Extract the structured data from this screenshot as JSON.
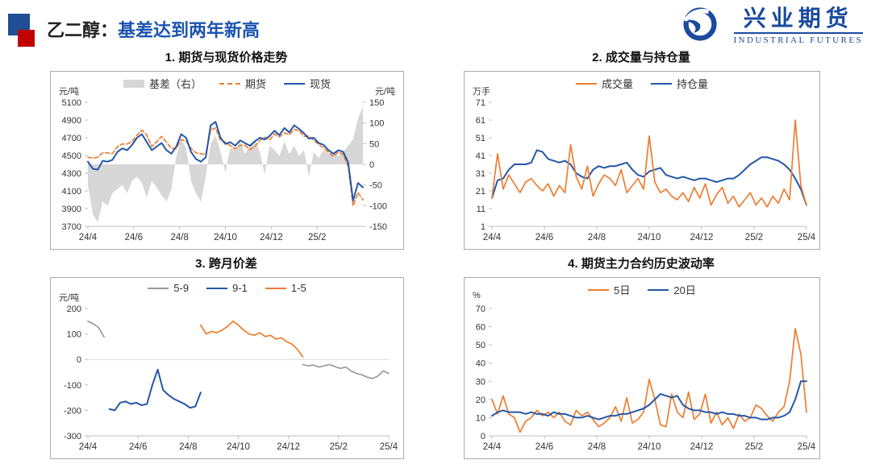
{
  "header": {
    "title_black": "乙二醇：",
    "title_blue": "基差达到两年新高"
  },
  "logo": {
    "name_cn": "兴业期货",
    "name_en": "INDUSTRIAL FUTURES",
    "color": "#1B4A9E"
  },
  "colors": {
    "orange": "#ED7D31",
    "blue": "#2457A7",
    "gray_area": "#D7D7D7",
    "gray_line": "#9B9B9B",
    "axis": "#BFBFBF",
    "text": "#333333"
  },
  "chart_data": [
    {
      "type": "line",
      "title": "1. 期货与现货价格走势",
      "unit_left": "元/吨",
      "unit_right": "元/吨",
      "x_ticks": [
        "24/4",
        "24/6",
        "24/8",
        "24/10",
        "24/12",
        "25/2"
      ],
      "x_tick_divisions": 6,
      "y_left": {
        "min": 3700,
        "max": 5100,
        "step": 200
      },
      "y_right": {
        "min": -150,
        "max": 150,
        "step": 50
      },
      "legend": [
        {
          "label": "基差（右）",
          "swatch": "area",
          "color": "gray_area"
        },
        {
          "label": "期货",
          "swatch": "dashed",
          "color": "orange"
        },
        {
          "label": "现货",
          "swatch": "line",
          "color": "blue"
        }
      ],
      "series": [
        {
          "name": "基差（右）",
          "kind": "area",
          "axis": "right",
          "color": "gray_area",
          "values": [
            -50,
            -120,
            -140,
            -90,
            -100,
            -70,
            -60,
            -50,
            -70,
            -40,
            -30,
            -45,
            -80,
            -40,
            -55,
            -75,
            -90,
            -60,
            20,
            60,
            40,
            -40,
            -70,
            -90,
            -30,
            50,
            70,
            30,
            -20,
            40,
            35,
            55,
            25,
            45,
            60,
            30,
            -25,
            45,
            35,
            20,
            55,
            25,
            45,
            20,
            35,
            -30,
            30,
            15,
            35,
            25,
            30,
            20,
            30,
            45,
            60,
            110,
            140
          ]
        },
        {
          "name": "期货",
          "kind": "line",
          "dash": "5 3",
          "axis": "left",
          "color": "orange",
          "width": 1.7,
          "values": [
            4480,
            4470,
            4480,
            4530,
            4530,
            4520,
            4600,
            4630,
            4630,
            4660,
            4730,
            4785,
            4730,
            4600,
            4655,
            4715,
            4650,
            4580,
            4580,
            4680,
            4660,
            4580,
            4530,
            4520,
            4510,
            4790,
            4810,
            4670,
            4650,
            4610,
            4575,
            4615,
            4615,
            4565,
            4600,
            4670,
            4705,
            4675,
            4745,
            4710,
            4755,
            4735,
            4795,
            4780,
            4715,
            4720,
            4670,
            4625,
            4585,
            4535,
            4490,
            4540,
            4510,
            4375,
            3930,
            4080,
            4000
          ]
        },
        {
          "name": "现货",
          "kind": "line",
          "axis": "left",
          "color": "blue",
          "width": 2,
          "values": [
            4430,
            4350,
            4340,
            4440,
            4430,
            4450,
            4540,
            4580,
            4560,
            4620,
            4700,
            4740,
            4650,
            4560,
            4600,
            4640,
            4560,
            4520,
            4600,
            4740,
            4700,
            4540,
            4460,
            4430,
            4480,
            4840,
            4880,
            4700,
            4630,
            4650,
            4610,
            4670,
            4640,
            4610,
            4660,
            4700,
            4680,
            4720,
            4780,
            4730,
            4810,
            4760,
            4840,
            4800,
            4750,
            4690,
            4700,
            4640,
            4620,
            4560,
            4520,
            4560,
            4540,
            4420,
            3990,
            4190,
            4140
          ]
        }
      ]
    },
    {
      "type": "line",
      "title": "2. 成交量与持仓量",
      "unit_left": "万手",
      "x_ticks": [
        "24/4",
        "24/6",
        "24/8",
        "24/10",
        "24/12",
        "25/2",
        "25/4"
      ],
      "x_tick_divisions": 6,
      "y_left": {
        "min": 1,
        "max": 71,
        "step": 10
      },
      "legend": [
        {
          "label": "成交量",
          "swatch": "line",
          "color": "orange"
        },
        {
          "label": "持仓量",
          "swatch": "line",
          "color": "blue"
        }
      ],
      "series": [
        {
          "name": "持仓量",
          "kind": "line",
          "axis": "left",
          "color": "blue",
          "width": 2,
          "values": [
            17,
            27,
            28,
            33,
            36,
            36,
            36,
            37,
            44,
            43,
            39,
            38,
            37,
            38,
            36,
            31,
            29,
            28,
            33,
            35,
            34,
            35,
            35,
            36,
            37,
            33,
            30,
            29,
            32,
            33,
            34,
            30,
            29,
            28,
            29,
            28,
            27,
            28,
            28,
            27,
            26,
            27,
            28,
            28,
            30,
            33,
            36,
            38,
            40,
            40,
            39,
            38,
            36,
            33,
            28,
            22,
            13
          ]
        },
        {
          "name": "成交量",
          "kind": "line",
          "axis": "left",
          "color": "orange",
          "width": 1.7,
          "values": [
            17,
            42,
            22,
            30,
            25,
            20,
            26,
            28,
            24,
            21,
            25,
            18,
            24,
            20,
            47,
            29,
            22,
            35,
            18,
            25,
            30,
            28,
            24,
            33,
            20,
            24,
            28,
            22,
            52,
            26,
            20,
            22,
            18,
            16,
            20,
            15,
            23,
            17,
            25,
            13,
            19,
            23,
            14,
            18,
            12,
            16,
            20,
            13,
            17,
            12,
            18,
            14,
            22,
            16,
            61,
            24,
            13
          ]
        }
      ]
    },
    {
      "type": "line",
      "title": "3. 跨月价差",
      "unit_left": "元/吨",
      "x_ticks": [
        "24/4",
        "24/6",
        "24/8",
        "24/10",
        "24/12",
        "25/2",
        "25/4"
      ],
      "x_tick_divisions": 6,
      "y_left": {
        "min": -300,
        "max": 200,
        "step": 100
      },
      "zero_line": true,
      "legend": [
        {
          "label": "5-9",
          "swatch": "line",
          "color": "gray_line"
        },
        {
          "label": "9-1",
          "swatch": "line",
          "color": "blue"
        },
        {
          "label": "1-5",
          "swatch": "line",
          "color": "orange"
        }
      ],
      "series": [
        {
          "name": "5-9",
          "kind": "line",
          "axis": "left",
          "color": "gray_line",
          "width": 1.7,
          "values": [
            150,
            140,
            125,
            88,
            null,
            null,
            null,
            null,
            null,
            null,
            null,
            null,
            null,
            null,
            null,
            null,
            null,
            null,
            null,
            null,
            null,
            null,
            null,
            null,
            null,
            null,
            null,
            null,
            null,
            null,
            null,
            null,
            null,
            null,
            null,
            null,
            null,
            null,
            null,
            null,
            -20,
            -25,
            -22,
            -30,
            -25,
            -20,
            -28,
            -35,
            -30,
            -45,
            -55,
            -60,
            -70,
            -75,
            -65,
            -45,
            -55
          ]
        },
        {
          "name": "9-1",
          "kind": "line",
          "axis": "left",
          "color": "blue",
          "width": 2,
          "values": [
            null,
            null,
            null,
            null,
            -195,
            -200,
            -170,
            -165,
            -175,
            -170,
            -180,
            -175,
            -100,
            -40,
            -120,
            -140,
            -155,
            -165,
            -175,
            -190,
            -185,
            -130,
            null,
            null,
            null,
            null,
            null,
            null,
            null,
            null,
            null,
            null,
            null,
            null,
            null,
            null,
            null,
            null,
            null,
            null,
            null,
            null,
            null,
            null,
            null,
            null,
            null,
            null,
            null,
            null,
            null,
            null,
            null,
            null,
            null,
            null,
            null
          ]
        },
        {
          "name": "1-5",
          "kind": "line",
          "axis": "left",
          "color": "orange",
          "width": 1.7,
          "values": [
            null,
            null,
            null,
            null,
            null,
            null,
            null,
            null,
            null,
            null,
            null,
            null,
            null,
            null,
            null,
            null,
            null,
            null,
            null,
            null,
            null,
            135,
            100,
            110,
            105,
            115,
            130,
            150,
            135,
            115,
            100,
            95,
            105,
            90,
            95,
            80,
            85,
            70,
            60,
            40,
            10,
            null,
            null,
            null,
            null,
            null,
            null,
            null,
            null,
            null,
            null,
            null,
            null,
            null,
            null,
            null,
            null
          ]
        }
      ]
    },
    {
      "type": "line",
      "title": "4. 期货主力合约历史波动率",
      "unit_left": "%",
      "x_ticks": [
        "24/4",
        "24/6",
        "24/8",
        "24/10",
        "24/12",
        "25/2",
        "25/4"
      ],
      "x_tick_divisions": 6,
      "y_left": {
        "min": 0,
        "max": 70,
        "step": 10
      },
      "legend": [
        {
          "label": "5日",
          "swatch": "line",
          "color": "orange"
        },
        {
          "label": "20日",
          "swatch": "line",
          "color": "blue"
        }
      ],
      "series": [
        {
          "name": "5日",
          "kind": "line",
          "axis": "left",
          "color": "orange",
          "width": 1.7,
          "values": [
            20,
            12,
            22,
            12,
            10,
            2,
            8,
            10,
            14,
            11,
            13,
            10,
            13,
            8,
            6,
            14,
            11,
            13,
            9,
            5,
            7,
            10,
            16,
            8,
            21,
            7,
            9,
            13,
            31,
            20,
            6,
            5,
            23,
            13,
            10,
            24,
            9,
            12,
            23,
            7,
            13,
            6,
            10,
            4,
            12,
            8,
            10,
            17,
            15,
            11,
            8,
            13,
            16,
            30,
            59,
            45,
            13
          ]
        },
        {
          "name": "20日",
          "kind": "line",
          "axis": "left",
          "color": "blue",
          "width": 2,
          "values": [
            11,
            13,
            14,
            13,
            13,
            13,
            12,
            13,
            12,
            12,
            11,
            13,
            12,
            12,
            11,
            10,
            10,
            11,
            10,
            9,
            10,
            11,
            11,
            12,
            12,
            13,
            14,
            15,
            17,
            20,
            23,
            22,
            21,
            22,
            17,
            15,
            14,
            14,
            13,
            13,
            12,
            13,
            12,
            12,
            11,
            11,
            10,
            10,
            9,
            9,
            10,
            10,
            11,
            13,
            20,
            30,
            30
          ]
        }
      ]
    }
  ]
}
